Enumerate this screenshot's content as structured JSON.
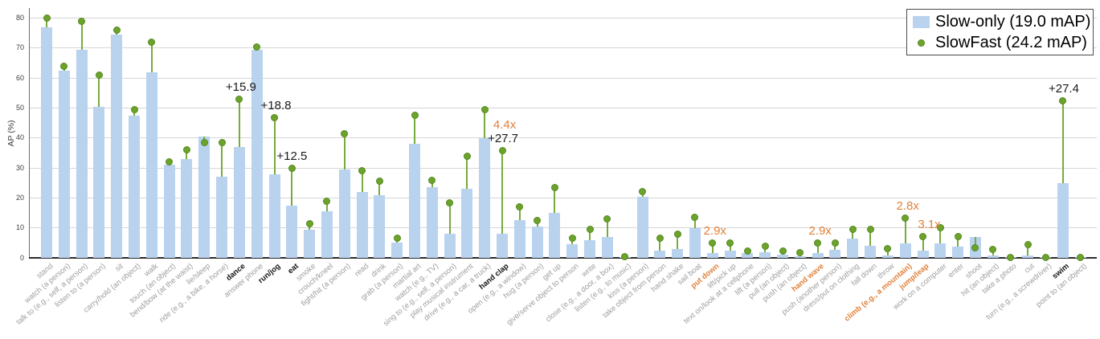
{
  "chart_data": {
    "type": "bar",
    "subtype": "bar-with-lollipop-overlay",
    "title": "",
    "xlabel": "",
    "ylabel": "AP (%)",
    "ylim": [
      0,
      80
    ],
    "yticks": [
      0,
      10,
      20,
      30,
      40,
      50,
      60,
      70,
      80
    ],
    "grid": true,
    "legend_position": "top-right",
    "legend": [
      {
        "label": "Slow-only (19.0 mAP)",
        "marker": "bar",
        "color": "#b9d2ee"
      },
      {
        "label": "SlowFast (24.2 mAP)",
        "marker": "dot",
        "color": "#6ba32b"
      }
    ],
    "series_names": [
      "Slow-only",
      "SlowFast"
    ],
    "categories": [
      {
        "label": "stand",
        "slow": 77,
        "slowfast": 80,
        "style": "normal"
      },
      {
        "label": "watch (a person)",
        "slow": 62.5,
        "slowfast": 64,
        "style": "normal"
      },
      {
        "label": "talk to (e.g., self, a person)",
        "slow": 69.5,
        "slowfast": 79,
        "style": "normal"
      },
      {
        "label": "listen to (a person)",
        "slow": 50.5,
        "slowfast": 61,
        "style": "normal"
      },
      {
        "label": "sit",
        "slow": 74.5,
        "slowfast": 76,
        "style": "normal"
      },
      {
        "label": "carry/hold (an object)",
        "slow": 47.5,
        "slowfast": 49.5,
        "style": "normal"
      },
      {
        "label": "walk",
        "slow": 62,
        "slowfast": 72,
        "style": "normal"
      },
      {
        "label": "touch (an object)",
        "slow": 31,
        "slowfast": 32,
        "style": "normal"
      },
      {
        "label": "bend/bow (at the waist)",
        "slow": 33,
        "slowfast": 36,
        "style": "normal"
      },
      {
        "label": "lie/sleep",
        "slow": 40.5,
        "slowfast": 38.5,
        "style": "normal"
      },
      {
        "label": "ride (e.g., a bike, a horse)",
        "slow": 27,
        "slowfast": 38.5,
        "style": "normal"
      },
      {
        "label": "dance",
        "slow": 37,
        "slowfast": 53,
        "style": "bold"
      },
      {
        "label": "answer phone",
        "slow": 69.5,
        "slowfast": 70.5,
        "style": "normal"
      },
      {
        "label": "run/jog",
        "slow": 28,
        "slowfast": 46.8,
        "style": "bold"
      },
      {
        "label": "eat",
        "slow": 17.5,
        "slowfast": 30,
        "style": "bold"
      },
      {
        "label": "smoke",
        "slow": 9.5,
        "slowfast": 11.5,
        "style": "normal"
      },
      {
        "label": "crouch/kneel",
        "slow": 15.5,
        "slowfast": 19,
        "style": "normal"
      },
      {
        "label": "fight/hit (a person)",
        "slow": 29.5,
        "slowfast": 41.5,
        "style": "normal"
      },
      {
        "label": "read",
        "slow": 22,
        "slowfast": 29,
        "style": "normal"
      },
      {
        "label": "drink",
        "slow": 21,
        "slowfast": 25.5,
        "style": "normal"
      },
      {
        "label": "grab (a person)",
        "slow": 5,
        "slowfast": 6.5,
        "style": "normal"
      },
      {
        "label": "martial art",
        "slow": 38,
        "slowfast": 47.5,
        "style": "normal"
      },
      {
        "label": "watch (e.g., TV)",
        "slow": 23.5,
        "slowfast": 26,
        "style": "normal"
      },
      {
        "label": "sing to (e.g., self, a person)",
        "slow": 8,
        "slowfast": 18.5,
        "style": "normal"
      },
      {
        "label": "play musical instrument",
        "slow": 23,
        "slowfast": 34,
        "style": "normal"
      },
      {
        "label": "drive (e.g., a car, a truck)",
        "slow": 40,
        "slowfast": 49.5,
        "style": "normal"
      },
      {
        "label": "hand clap",
        "slow": 8,
        "slowfast": 35.7,
        "style": "bold"
      },
      {
        "label": "open (e.g., a window)",
        "slow": 12.5,
        "slowfast": 17,
        "style": "normal"
      },
      {
        "label": "hug (a person)",
        "slow": 10.5,
        "slowfast": 12.5,
        "style": "normal"
      },
      {
        "label": "get up",
        "slow": 15,
        "slowfast": 23.5,
        "style": "normal"
      },
      {
        "label": "give/serve object to person",
        "slow": 4.5,
        "slowfast": 6.5,
        "style": "normal"
      },
      {
        "label": "write",
        "slow": 6,
        "slowfast": 9.5,
        "style": "normal"
      },
      {
        "label": "close (e.g., a door, a box)",
        "slow": 7,
        "slowfast": 13,
        "style": "normal"
      },
      {
        "label": "listen (e.g., to music)",
        "slow": 0.3,
        "slowfast": 0.5,
        "style": "normal"
      },
      {
        "label": "kiss (a person)",
        "slow": 20.5,
        "slowfast": 22,
        "style": "normal"
      },
      {
        "label": "take object from person",
        "slow": 2.5,
        "slowfast": 6.5,
        "style": "normal"
      },
      {
        "label": "hand shake",
        "slow": 3,
        "slowfast": 8,
        "style": "normal"
      },
      {
        "label": "sail boat",
        "slow": 10,
        "slowfast": 13.5,
        "style": "normal"
      },
      {
        "label": "put down",
        "slow": 1.7,
        "slowfast": 5,
        "style": "orange"
      },
      {
        "label": "lift/pick up",
        "slow": 2.5,
        "slowfast": 5,
        "style": "normal"
      },
      {
        "label": "text on/look at a cellphone",
        "slow": 1.5,
        "slowfast": 2.3,
        "style": "normal"
      },
      {
        "label": "lift (a person)",
        "slow": 2,
        "slowfast": 3.8,
        "style": "normal"
      },
      {
        "label": "pull (an object)",
        "slow": 1,
        "slowfast": 2.2,
        "style": "normal"
      },
      {
        "label": "push (an object)",
        "slow": 0.5,
        "slowfast": 1.8,
        "style": "normal"
      },
      {
        "label": "hand wave",
        "slow": 1.7,
        "slowfast": 5,
        "style": "orange"
      },
      {
        "label": "push (another person)",
        "slow": 2.7,
        "slowfast": 5,
        "style": "normal"
      },
      {
        "label": "dress/put on clothing",
        "slow": 6.5,
        "slowfast": 9.5,
        "style": "normal"
      },
      {
        "label": "fall down",
        "slow": 4,
        "slowfast": 9.5,
        "style": "normal"
      },
      {
        "label": "throw",
        "slow": 0.7,
        "slowfast": 3,
        "style": "normal"
      },
      {
        "label": "climb (e.g., a mountain)",
        "slow": 4.7,
        "slowfast": 13.2,
        "style": "orange"
      },
      {
        "label": "jump/leap",
        "slow": 2.3,
        "slowfast": 7,
        "style": "orange"
      },
      {
        "label": "work on a computer",
        "slow": 4.7,
        "slowfast": 10,
        "style": "normal"
      },
      {
        "label": "enter",
        "slow": 3.8,
        "slowfast": 7.2,
        "style": "normal"
      },
      {
        "label": "shoot",
        "slow": 7,
        "slowfast": 3.3,
        "style": "normal"
      },
      {
        "label": "hit (an object)",
        "slow": 0.8,
        "slowfast": 2.7,
        "style": "normal"
      },
      {
        "label": "take a photo",
        "slow": 0.3,
        "slowfast": 0.1,
        "style": "normal"
      },
      {
        "label": "cut",
        "slow": 0.8,
        "slowfast": 4.4,
        "style": "normal"
      },
      {
        "label": "turn (e.g., a screwdriver)",
        "slow": 0.2,
        "slowfast": 0.2,
        "style": "normal"
      },
      {
        "label": "swim",
        "slow": 25,
        "slowfast": 52.4,
        "style": "bold"
      },
      {
        "label": "point to (an object)",
        "slow": 0.1,
        "slowfast": 0.1,
        "style": "normal"
      }
    ],
    "annotations": [
      {
        "index": 11,
        "text": "+15.9",
        "style": "dark",
        "row": 0,
        "dx": 2
      },
      {
        "index": 13,
        "text": "+18.8",
        "style": "dark",
        "row": 0,
        "dx": 2
      },
      {
        "index": 14,
        "text": "+12.5",
        "style": "dark",
        "row": 0,
        "dx": 0
      },
      {
        "index": 26,
        "text": "+27.7",
        "style": "dark",
        "row": 0,
        "dx": 1
      },
      {
        "index": 26,
        "text": "4.4x",
        "style": "orange",
        "row": 1,
        "dx": 3
      },
      {
        "index": 38,
        "text": "2.9x",
        "style": "orange",
        "row": 0,
        "dx": 3
      },
      {
        "index": 44,
        "text": "2.9x",
        "style": "orange",
        "row": 0,
        "dx": 3
      },
      {
        "index": 49,
        "text": "2.8x",
        "style": "orange",
        "row": 0,
        "dx": 3
      },
      {
        "index": 50,
        "text": "3.1x",
        "style": "orange",
        "row": 0,
        "dx": 8
      },
      {
        "index": 58,
        "text": "+27.4",
        "style": "dark",
        "row": 0,
        "dx": 1
      }
    ]
  },
  "colors": {
    "bar_fill": "#b9d2ee",
    "dot_fill": "#6ba32b",
    "dot_border": "#55871f",
    "stem": "#77ab3c",
    "gridline": "#d6d6d6",
    "axis": "#2b2b2b",
    "tick_text": "#3d3d3d",
    "category_normal": "#9e9e9e",
    "category_bold": "#141414",
    "category_orange": "#e0813a",
    "annotation_dark": "#1a1a1a",
    "annotation_orange": "#e0813a"
  }
}
